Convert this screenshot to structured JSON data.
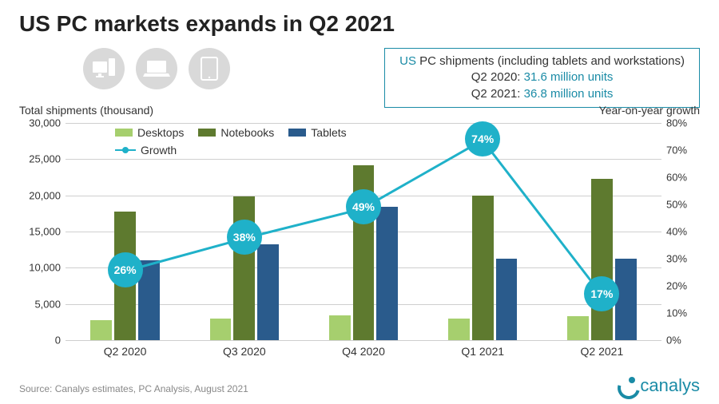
{
  "title": "US PC markets expands in Q2 2021",
  "summary": {
    "line1_prefix": "US",
    "line1_rest": " PC shipments (including tablets and workstations)",
    "line2_label": "Q2 2020: ",
    "line2_value": "31.6 million units",
    "line3_label": "Q2 2021: ",
    "line3_value": "36.8 million units"
  },
  "chart": {
    "type": "bar+line",
    "y_left_label": "Total shipments (thousand)",
    "y_right_label": "Year-on-year growth",
    "y_left": {
      "min": 0,
      "max": 30000,
      "step": 5000
    },
    "y_right": {
      "min": 0,
      "max": 80,
      "step": 10,
      "suffix": "%"
    },
    "categories": [
      "Q2 2020",
      "Q3 2020",
      "Q4 2020",
      "Q1 2021",
      "Q2 2021"
    ],
    "series": [
      {
        "name": "Desktops",
        "color": "#a6cf6e",
        "values": [
          2800,
          3000,
          3400,
          3000,
          3300
        ]
      },
      {
        "name": "Notebooks",
        "color": "#5e7a2f",
        "values": [
          17800,
          19800,
          24200,
          20000,
          22300
        ]
      },
      {
        "name": "Tablets",
        "color": "#2a5b8c",
        "values": [
          11000,
          13200,
          18400,
          11200,
          11200
        ]
      }
    ],
    "growth": {
      "name": "Growth",
      "color": "#1fb1c9",
      "values": [
        26,
        38,
        49,
        74,
        17
      ],
      "suffix": "%"
    },
    "bar_width_pct": 3.6,
    "group_gap_pct": 0.4,
    "background_color": "#ffffff",
    "grid_color": "#cfcfcf",
    "legend_labels": {
      "desktops": "Desktops",
      "notebooks": "Notebooks",
      "tablets": "Tablets",
      "growth": "Growth"
    }
  },
  "footer": "Source: Canalys estimates, PC Analysis, August 2021",
  "logo_text": "canalys"
}
